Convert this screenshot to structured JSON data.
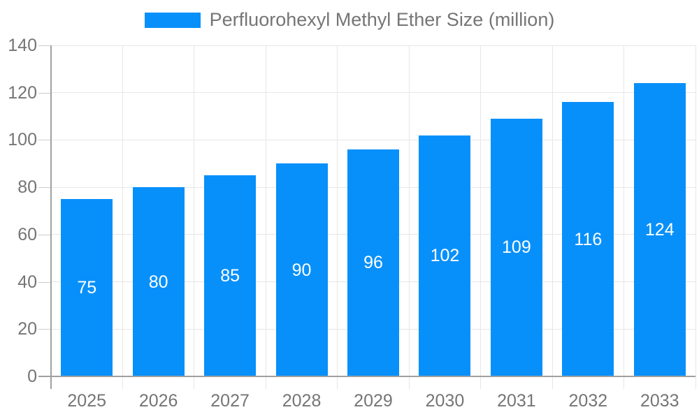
{
  "chart_data": {
    "type": "bar",
    "title": "",
    "xlabel": "",
    "ylabel": "",
    "categories": [
      "2025",
      "2026",
      "2027",
      "2028",
      "2029",
      "2030",
      "2031",
      "2032",
      "2033"
    ],
    "series": [
      {
        "name": "Perfluorohexyl Methyl Ether Size (million)",
        "values": [
          75,
          80,
          85,
          90,
          96,
          102,
          109,
          116,
          124
        ]
      }
    ],
    "bar_value_labels": [
      "75",
      "80",
      "85",
      "90",
      "96",
      "102",
      "109",
      "116",
      "124"
    ],
    "ylim": [
      0,
      140
    ],
    "yticks": [
      0,
      20,
      40,
      60,
      80,
      100,
      120,
      140
    ],
    "grid": true,
    "legend_position": "top"
  },
  "legend": {
    "label": "Perfluorohexyl Methyl Ether Size (million)"
  },
  "colors": {
    "bar": "#0890fa",
    "grid_light": "#e6e6e6",
    "axis_line": "#a0a0a0",
    "tick": "#cccccc",
    "axis_text": "#757575",
    "bar_label_text": "#ffffff",
    "background": "#ffffff"
  }
}
